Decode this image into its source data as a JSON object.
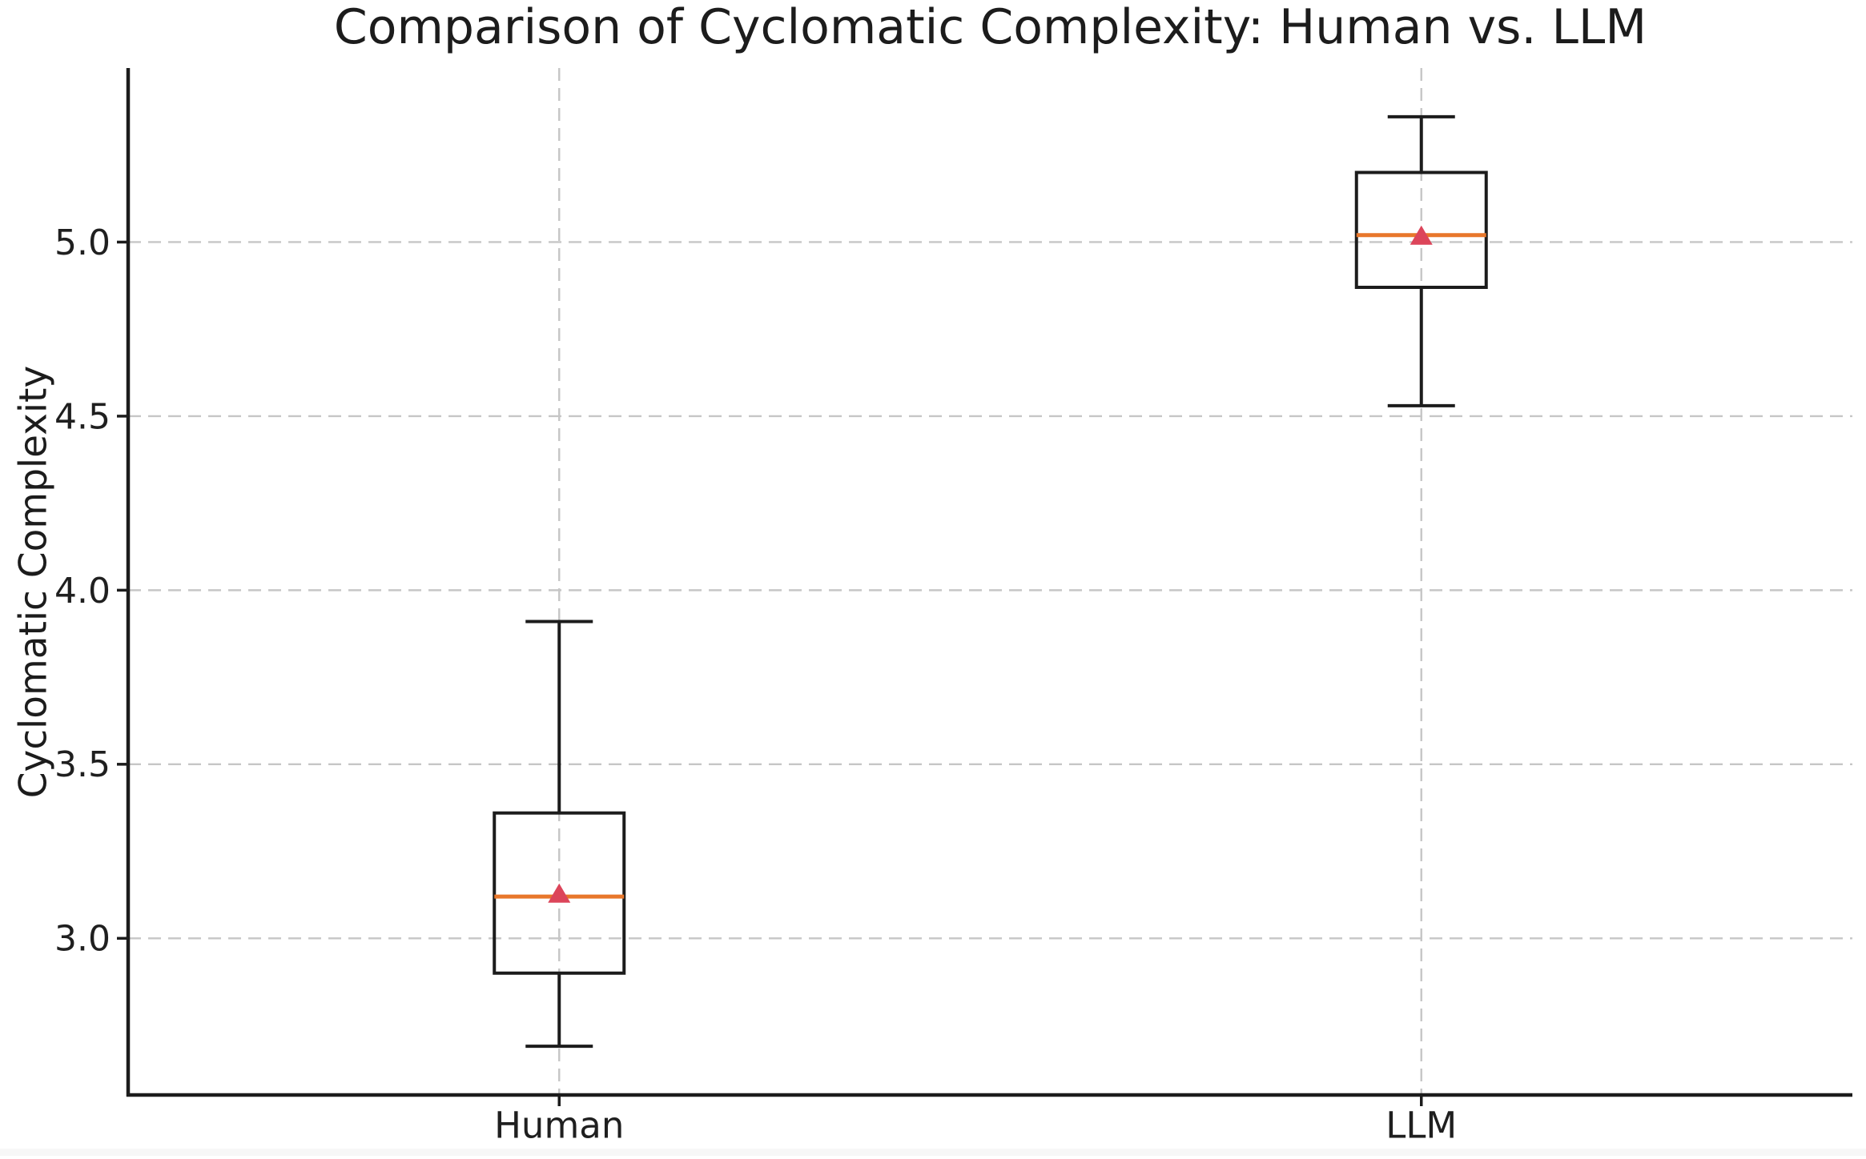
{
  "chart_data": {
    "type": "boxplot",
    "title": "Comparison of Cyclomatic Complexity: Human vs. LLM",
    "xlabel": "",
    "ylabel": "Cyclomatic Complexity",
    "categories": [
      "Human",
      "LLM"
    ],
    "series": [
      {
        "name": "Human",
        "whisker_low": 2.69,
        "q1": 2.9,
        "median": 3.12,
        "mean": 3.13,
        "q3": 3.36,
        "whisker_high": 3.91
      },
      {
        "name": "LLM",
        "whisker_low": 4.53,
        "q1": 4.87,
        "median": 5.02,
        "mean": 5.02,
        "q3": 5.2,
        "whisker_high": 5.36
      }
    ],
    "yticks": [
      3.0,
      3.5,
      4.0,
      4.5,
      5.0
    ],
    "ytick_labels": [
      "3.0",
      "3.5",
      "4.0",
      "4.5",
      "5.0"
    ],
    "ylim": [
      2.55,
      5.5
    ],
    "grid": {
      "style": "dashed",
      "axes": "both"
    },
    "legend": "none",
    "mean_marker": "triangle-up"
  },
  "colors": {
    "box_edge": "#1c1c1c",
    "median": "#e8772b",
    "mean_marker": "#dc455a",
    "grid": "#c6c6c6",
    "spine": "#1c1c1c",
    "text": "#1c1c1c",
    "background": "#ffffff",
    "bottom_strip": "#f7f7f7"
  }
}
